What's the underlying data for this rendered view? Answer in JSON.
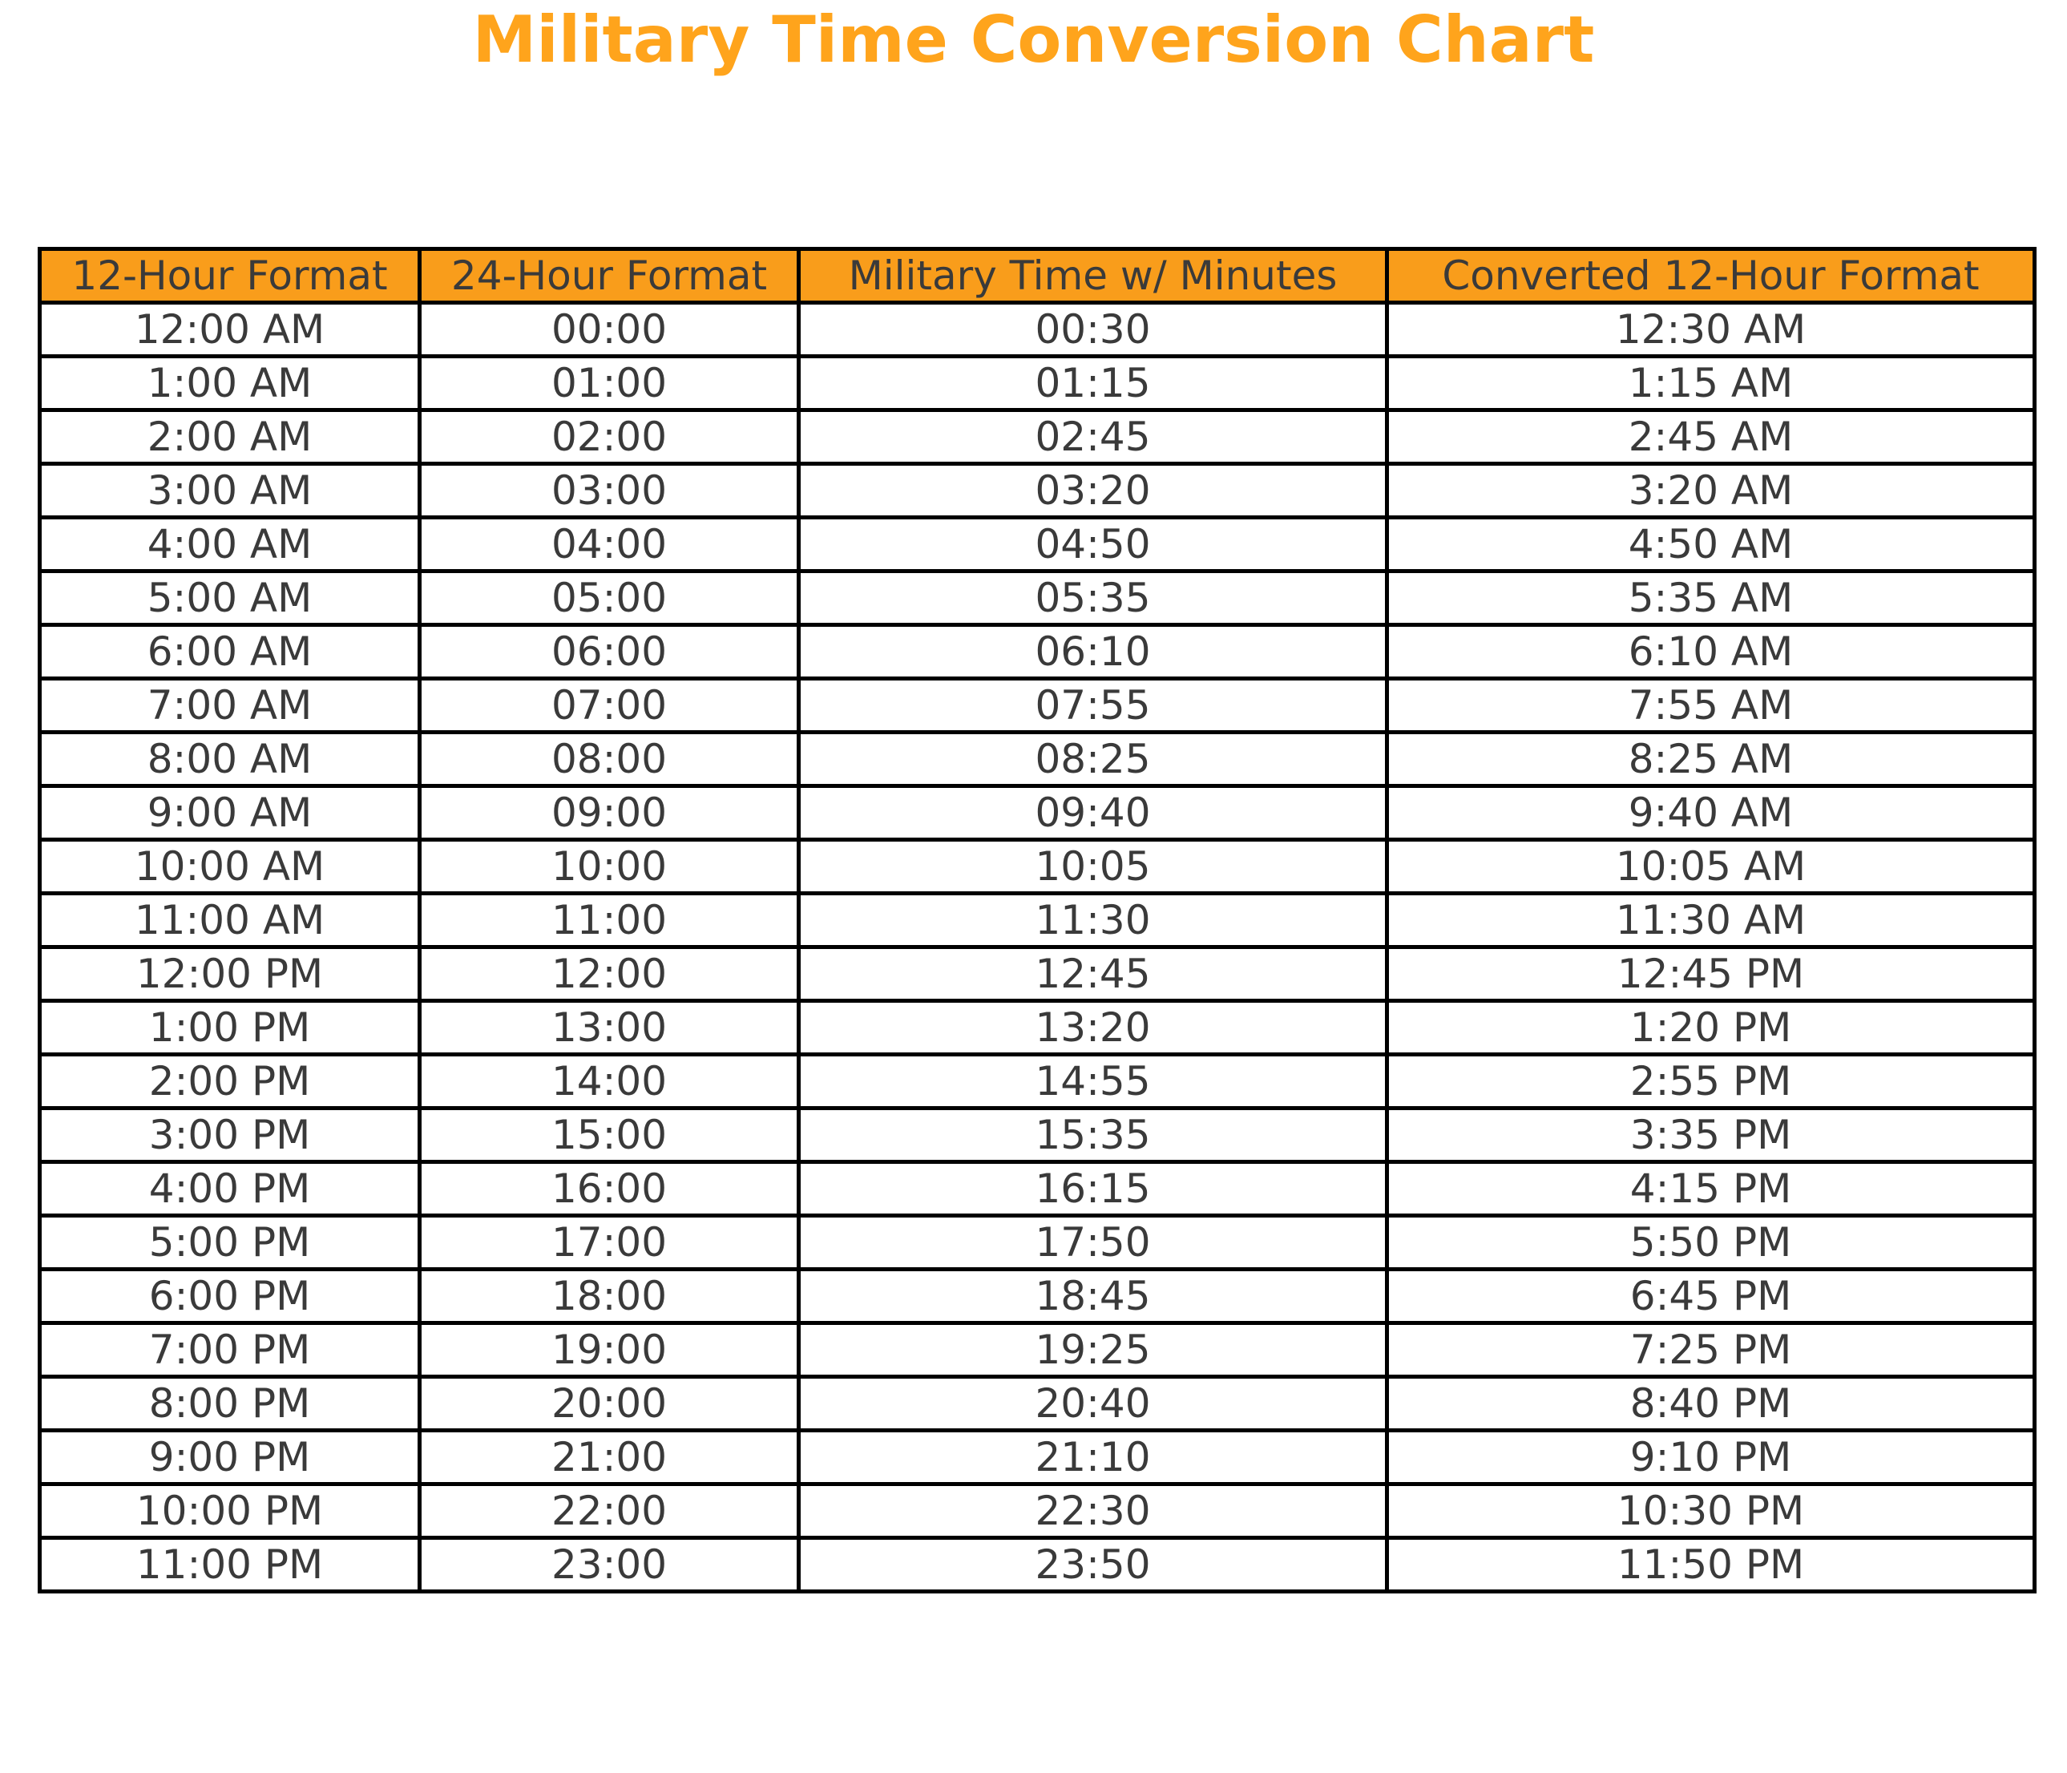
{
  "title": "Military Time Conversion Chart",
  "colors": {
    "title_orange": "#FFA41C",
    "header_bg": "#F99D1B",
    "text_dark": "#3A3A3A",
    "border_black": "#000000",
    "page_bg": "#FFFFFF"
  },
  "chart_data": {
    "type": "table",
    "title": "Military Time Conversion Chart",
    "legend_position": "none",
    "grid": "on",
    "columns": [
      "12-Hour Format",
      "24-Hour Format",
      "Military Time w/ Minutes",
      "Converted 12-Hour Format"
    ],
    "rows": [
      [
        "12:00 AM",
        "00:00",
        "00:30",
        "12:30 AM"
      ],
      [
        "1:00 AM",
        "01:00",
        "01:15",
        "1:15 AM"
      ],
      [
        "2:00 AM",
        "02:00",
        "02:45",
        "2:45 AM"
      ],
      [
        "3:00 AM",
        "03:00",
        "03:20",
        "3:20 AM"
      ],
      [
        "4:00 AM",
        "04:00",
        "04:50",
        "4:50 AM"
      ],
      [
        "5:00 AM",
        "05:00",
        "05:35",
        "5:35 AM"
      ],
      [
        "6:00 AM",
        "06:00",
        "06:10",
        "6:10 AM"
      ],
      [
        "7:00 AM",
        "07:00",
        "07:55",
        "7:55 AM"
      ],
      [
        "8:00 AM",
        "08:00",
        "08:25",
        "8:25 AM"
      ],
      [
        "9:00 AM",
        "09:00",
        "09:40",
        "9:40 AM"
      ],
      [
        "10:00 AM",
        "10:00",
        "10:05",
        "10:05 AM"
      ],
      [
        "11:00 AM",
        "11:00",
        "11:30",
        "11:30 AM"
      ],
      [
        "12:00 PM",
        "12:00",
        "12:45",
        "12:45 PM"
      ],
      [
        "1:00 PM",
        "13:00",
        "13:20",
        "1:20 PM"
      ],
      [
        "2:00 PM",
        "14:00",
        "14:55",
        "2:55 PM"
      ],
      [
        "3:00 PM",
        "15:00",
        "15:35",
        "3:35 PM"
      ],
      [
        "4:00 PM",
        "16:00",
        "16:15",
        "4:15 PM"
      ],
      [
        "5:00 PM",
        "17:00",
        "17:50",
        "5:50 PM"
      ],
      [
        "6:00 PM",
        "18:00",
        "18:45",
        "6:45 PM"
      ],
      [
        "7:00 PM",
        "19:00",
        "19:25",
        "7:25 PM"
      ],
      [
        "8:00 PM",
        "20:00",
        "20:40",
        "8:40 PM"
      ],
      [
        "9:00 PM",
        "21:00",
        "21:10",
        "9:10 PM"
      ],
      [
        "10:00 PM",
        "22:00",
        "22:30",
        "10:30 PM"
      ],
      [
        "11:00 PM",
        "23:00",
        "23:50",
        "11:50 PM"
      ]
    ]
  }
}
